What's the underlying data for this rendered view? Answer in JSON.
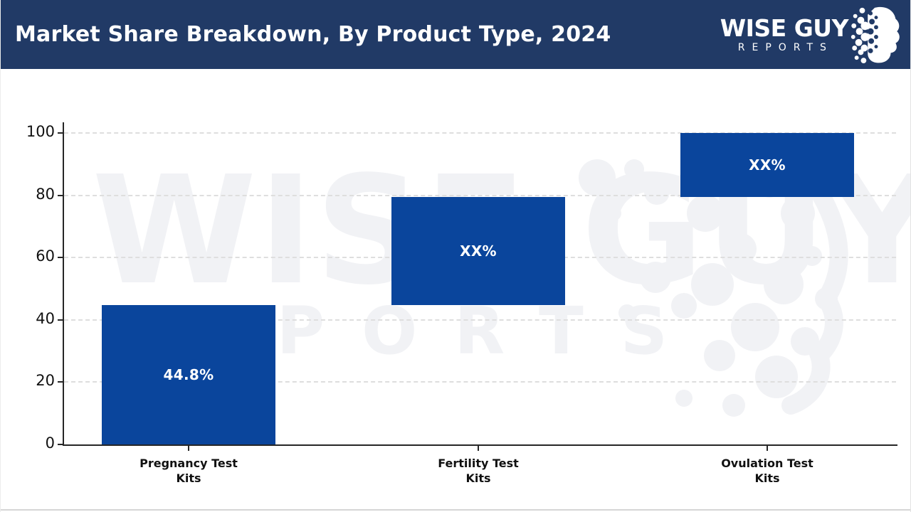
{
  "header": {
    "title": "Market Share Breakdown, By Product Type, 2024",
    "logo_line1": "WISE GUY",
    "logo_line2": "REPORTS",
    "bg_color": "#213a66"
  },
  "watermark": {
    "line1": "WISE GUY",
    "line2": "REPORTS"
  },
  "chart_data": {
    "type": "bar",
    "variant": "waterfall",
    "title": "Market Share Breakdown, By Product Type, 2024",
    "categories": [
      "Pregnancy Test\nKits",
      "Fertility Test\nKits",
      "Ovulation Test\nKits"
    ],
    "segments": [
      {
        "category": "Pregnancy Test Kits",
        "start": 0,
        "end": 44.8,
        "value": 44.8,
        "label": "44.8%"
      },
      {
        "category": "Fertility Test Kits",
        "start": 44.8,
        "end": 79.5,
        "value": 34.7,
        "label": "XX%"
      },
      {
        "category": "Ovulation Test Kits",
        "start": 79.5,
        "end": 100,
        "value": 20.5,
        "label": "XX%"
      }
    ],
    "xlabel": "",
    "ylabel": "",
    "ylim": [
      0,
      100
    ],
    "yticks": [
      0,
      20,
      40,
      60,
      80,
      100
    ],
    "grid": "horizontal-dashed",
    "legend": "none",
    "bar_color": "#0a459c",
    "value_label_color": "#ffffff",
    "axis_color": "#262626"
  }
}
